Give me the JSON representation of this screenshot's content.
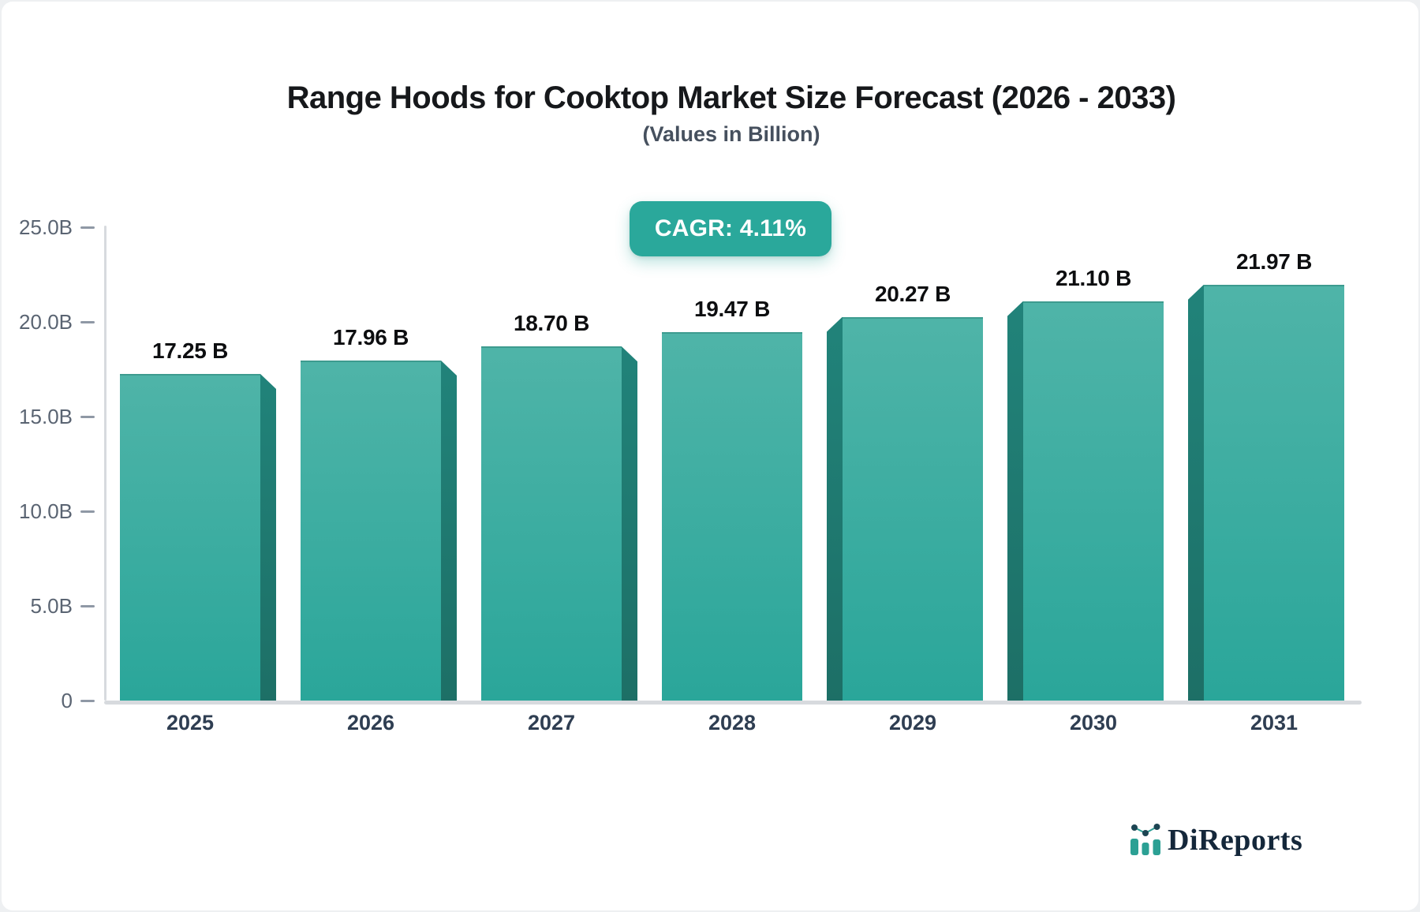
{
  "chart_data": {
    "type": "bar",
    "title": "Range Hoods for Cooktop Market Size Forecast (2026 - 2033)",
    "subtitle": "(Values in Billion)",
    "cagr_label": "CAGR: 4.11%",
    "categories": [
      "2025",
      "2026",
      "2027",
      "2028",
      "2029",
      "2030",
      "2031"
    ],
    "values": [
      17.25,
      17.96,
      18.7,
      19.47,
      20.27,
      21.1,
      21.97
    ],
    "bar_labels": [
      "17.25 B",
      "17.96 B",
      "18.70 B",
      "19.47 B",
      "20.27 B",
      "21.10 B",
      "21.97 B"
    ],
    "yticks": [
      {
        "label": "0",
        "value": 0
      },
      {
        "label": "5.0B",
        "value": 5
      },
      {
        "label": "10.0B",
        "value": 10
      },
      {
        "label": "15.0B",
        "value": 15
      },
      {
        "label": "20.0B",
        "value": 20
      },
      {
        "label": "25.0B",
        "value": 25
      }
    ],
    "ylim": [
      0,
      25
    ],
    "grid": false,
    "legend": "none",
    "colors": {
      "bar_face_top": "#4fb4a8",
      "bar_face_bottom": "#2aa69a",
      "bar_side_top": "#21837a",
      "bar_side_bottom": "#1d6f66",
      "badge_bg": "#2aa89b",
      "axis_line": "#d7dade"
    }
  },
  "branding": {
    "name": "DiReports"
  }
}
